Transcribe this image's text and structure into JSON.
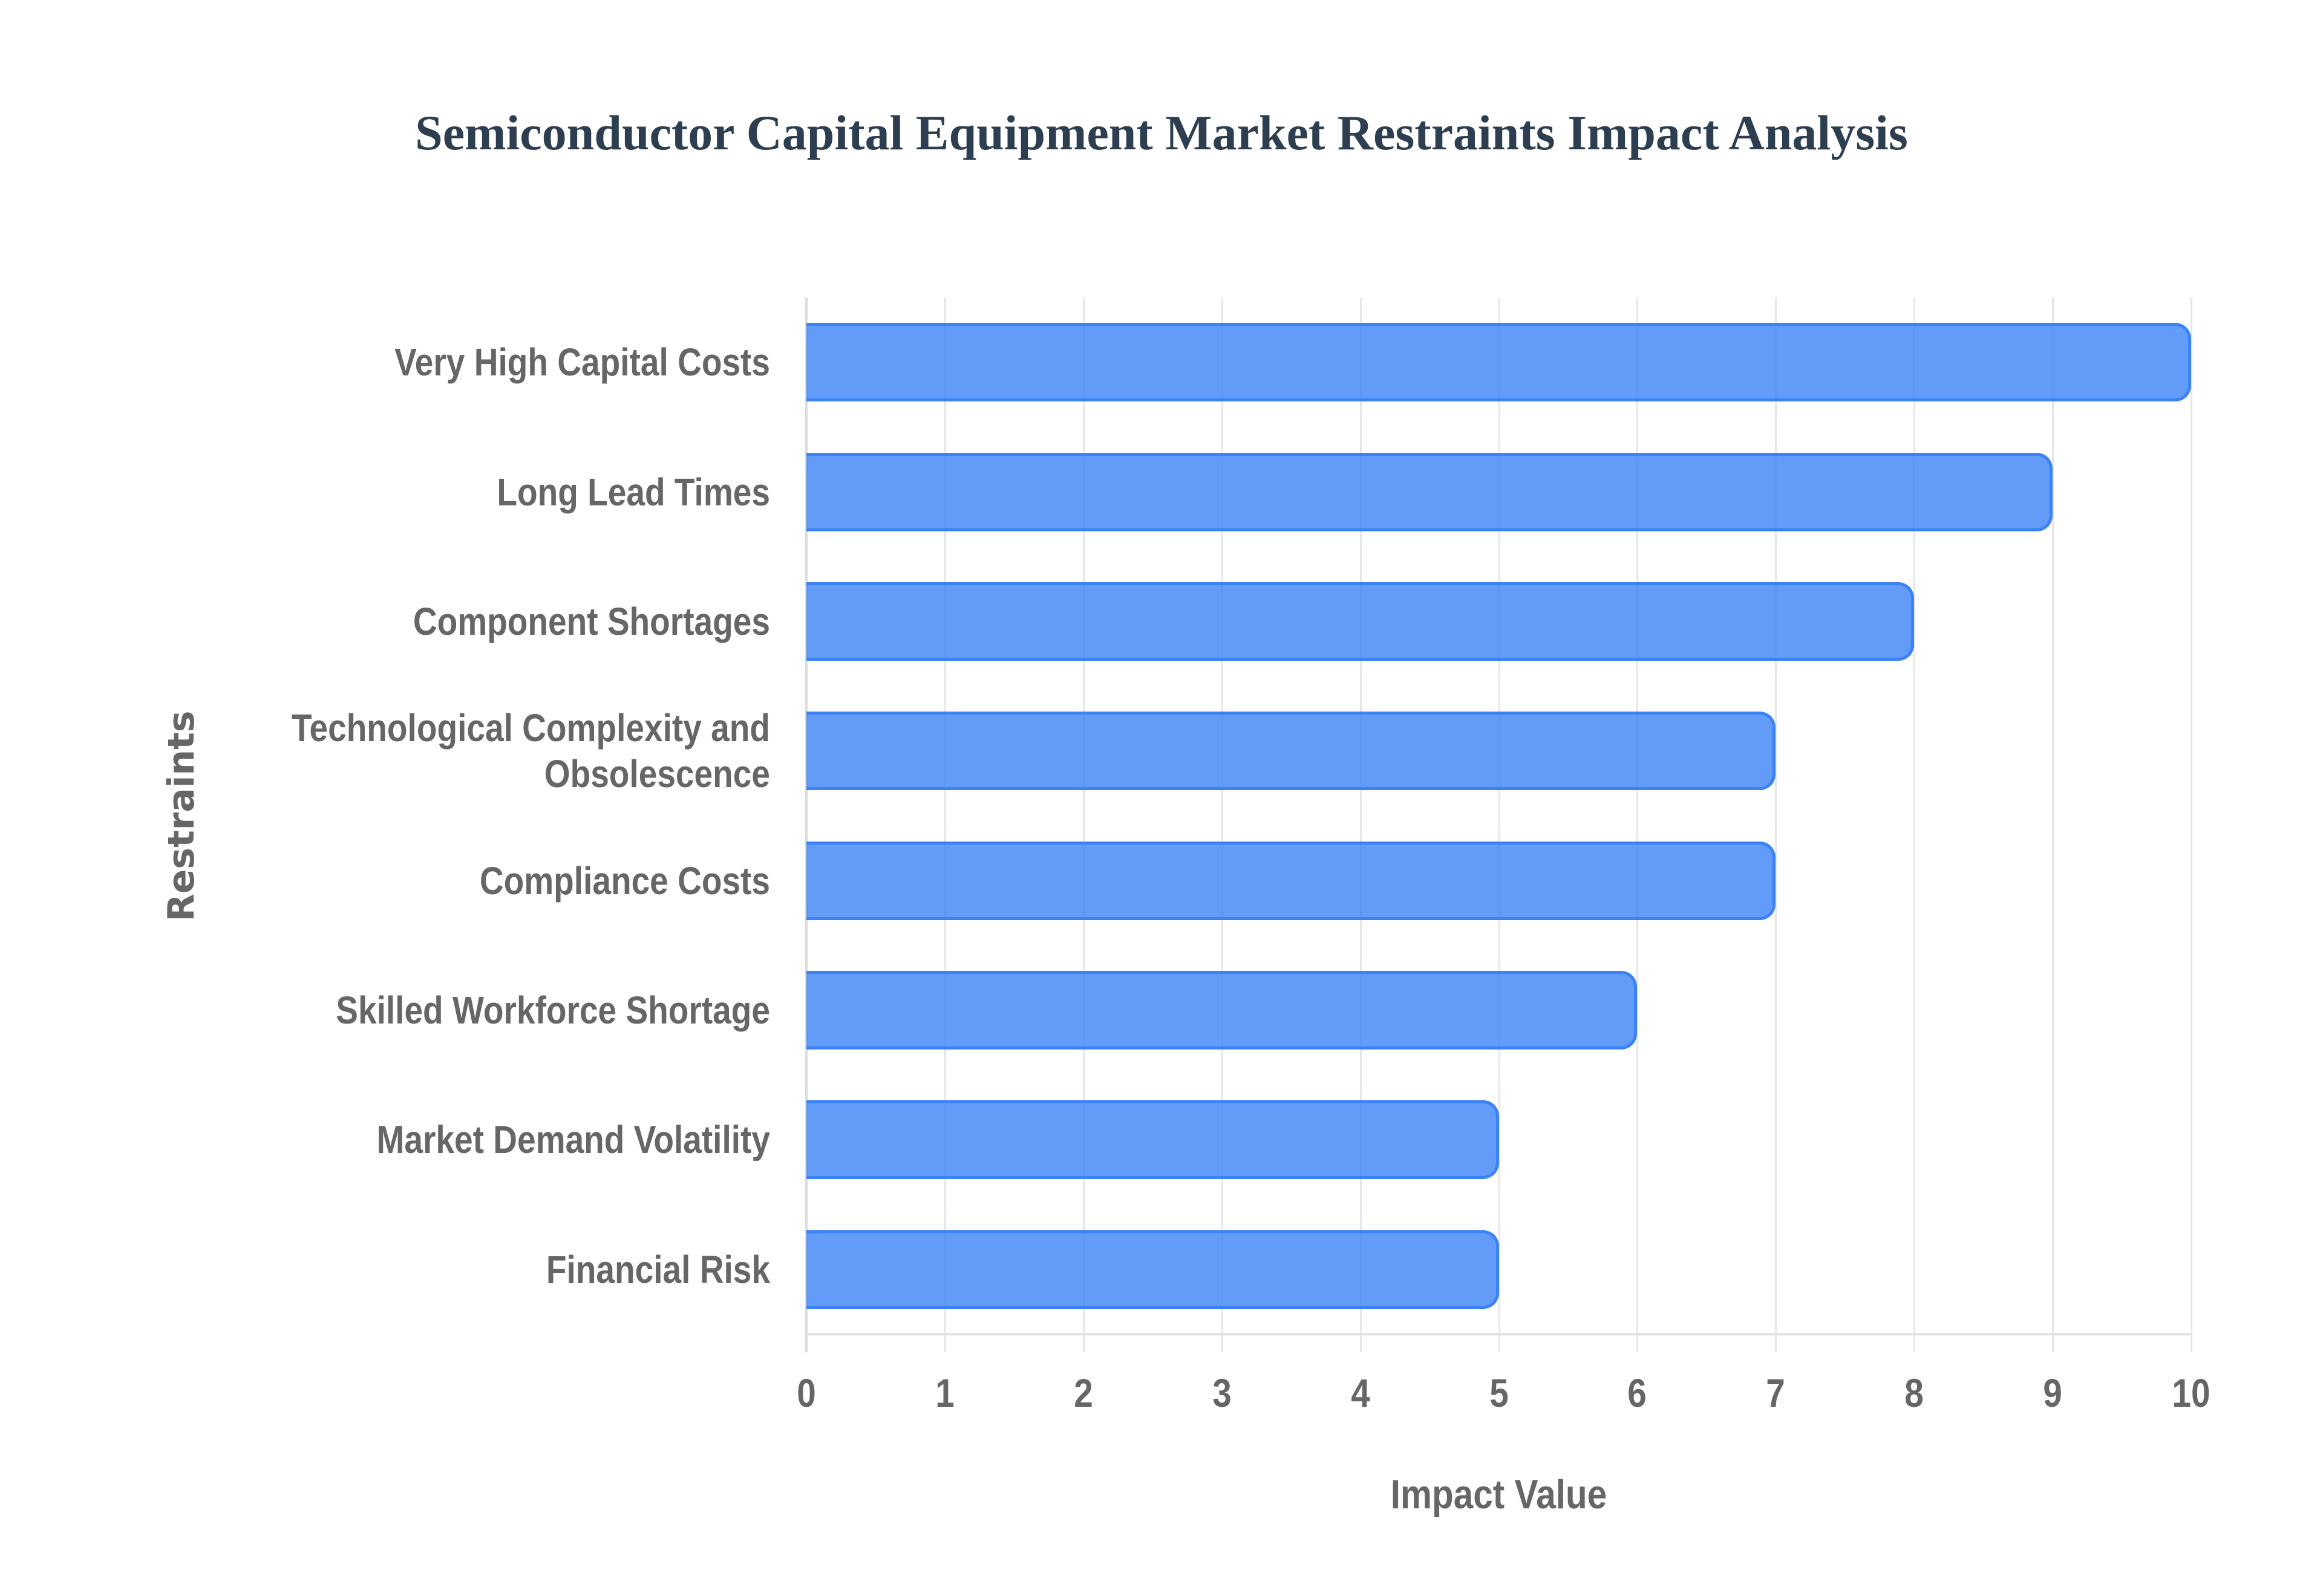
{
  "title": "Semiconductor Capital Equipment Market Restraints Impact Analysis",
  "axes": {
    "x_label": "Impact Value",
    "y_label": "Restraints",
    "x_ticks": [
      "0",
      "1",
      "2",
      "3",
      "4",
      "5",
      "6",
      "7",
      "8",
      "9",
      "10"
    ]
  },
  "colors": {
    "bar_fill": "#3b82f6cc",
    "bar_border": "#3b82f6",
    "title": "#2c3e50",
    "axis_text": "#666666",
    "grid": "#e6e6e6"
  },
  "chart_data": {
    "type": "bar",
    "orientation": "horizontal",
    "title": "Semiconductor Capital Equipment Market Restraints Impact Analysis",
    "xlabel": "Impact Value",
    "ylabel": "Restraints",
    "xlim": [
      0,
      10
    ],
    "grid": true,
    "legend": false,
    "categories": [
      "Very High Capital Costs",
      "Long Lead Times",
      "Component Shortages",
      "Technological Complexity and Obsolescence",
      "Compliance Costs",
      "Skilled Workforce Shortage",
      "Market Demand Volatility",
      "Financial Risk"
    ],
    "values": [
      10,
      9,
      8,
      7,
      7,
      6,
      5,
      5
    ]
  },
  "bars": [
    {
      "label": "Very High Capital Costs",
      "display_label": "Very High Capital Costs",
      "value": 10
    },
    {
      "label": "Long Lead Times",
      "display_label": "Long Lead Times",
      "value": 9
    },
    {
      "label": "Component Shortages",
      "display_label": "Component Shortages",
      "value": 8
    },
    {
      "label": "Technological Complexity and Obsolescence",
      "display_label": "Technological Complexity and\nObsolescence",
      "value": 7
    },
    {
      "label": "Compliance Costs",
      "display_label": "Compliance Costs",
      "value": 7
    },
    {
      "label": "Skilled Workforce Shortage",
      "display_label": "Skilled Workforce Shortage",
      "value": 6
    },
    {
      "label": "Market Demand Volatility",
      "display_label": "Market Demand Volatility",
      "value": 5
    },
    {
      "label": "Financial Risk",
      "display_label": "Financial Risk",
      "value": 5
    }
  ]
}
